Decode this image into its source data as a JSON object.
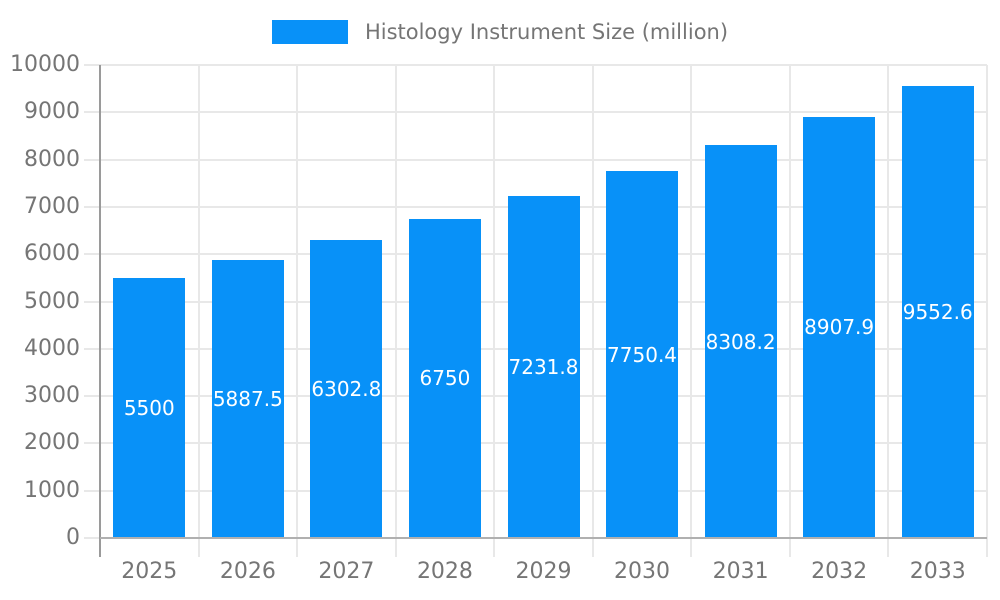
{
  "chart_data": {
    "type": "bar",
    "title": "Histology Instrument Size (million)",
    "legend": {
      "label": "Histology Instrument Size (million)",
      "position": "top-center"
    },
    "categories": [
      "2025",
      "2026",
      "2027",
      "2028",
      "2029",
      "2030",
      "2031",
      "2032",
      "2033"
    ],
    "series": [
      {
        "name": "Histology Instrument Size (million)",
        "values": [
          5500,
          5887.5,
          6302.8,
          6750,
          7231.8,
          7750.4,
          8308.2,
          8907.9,
          9552.6
        ]
      }
    ],
    "xlabel": "",
    "ylabel": "",
    "ylim": [
      0,
      10000
    ],
    "ytick_step": 1000,
    "grid": true,
    "bar_labels_visible": true,
    "bar_label_position": "center-inside",
    "colors": {
      "bar": "#0891f8",
      "bar_label": "#ffffff",
      "axis_text": "#757575",
      "title_text": "#757575",
      "gridline": "#e8e8e8",
      "axis_line": "#9a9a9a",
      "baseline": "#b0b0b0",
      "background": "#ffffff"
    }
  }
}
